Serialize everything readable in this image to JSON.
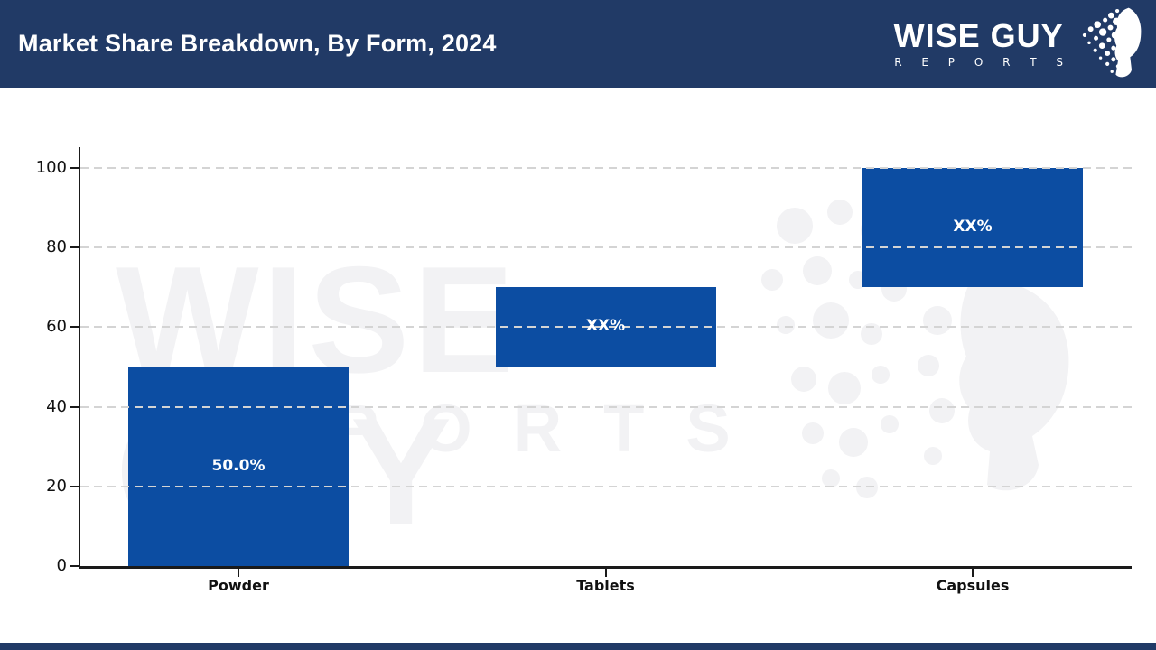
{
  "header": {
    "title": "Market Share Breakdown, By Form, 2024",
    "logo": {
      "line1": "WISE GUY",
      "line2": "R E P O R T S"
    }
  },
  "watermark": {
    "line1": "WISE GUY",
    "line2": "REPORTS"
  },
  "colors": {
    "header_bg": "#213a66",
    "bar": "#0c4da2",
    "gridline": "#d4d4d4",
    "axis": "#1a1a1a",
    "watermark": "#f2f2f4",
    "title_text": "#ffffff",
    "bar_label_text": "#ffffff",
    "tick_label_text": "#111111"
  },
  "chart_data": {
    "type": "bar",
    "subtype": "floating-waterfall",
    "title": "Market Share Breakdown, By Form, 2024",
    "categories": [
      "Powder",
      "Tablets",
      "Capsules"
    ],
    "series": [
      {
        "name": "Market Share",
        "segments": [
          {
            "from": 0,
            "to": 50
          },
          {
            "from": 50,
            "to": 70
          },
          {
            "from": 70,
            "to": 100
          }
        ]
      }
    ],
    "bar_labels": [
      "50.0%",
      "XX%",
      "XX%"
    ],
    "xlabel": "",
    "ylabel": "",
    "ylim": [
      0,
      100
    ],
    "yticks": [
      0,
      20,
      40,
      60,
      80,
      100
    ],
    "grid": "dashed-horizontal-over-bars",
    "legend": "none",
    "bar_color": "#0c4da2"
  }
}
